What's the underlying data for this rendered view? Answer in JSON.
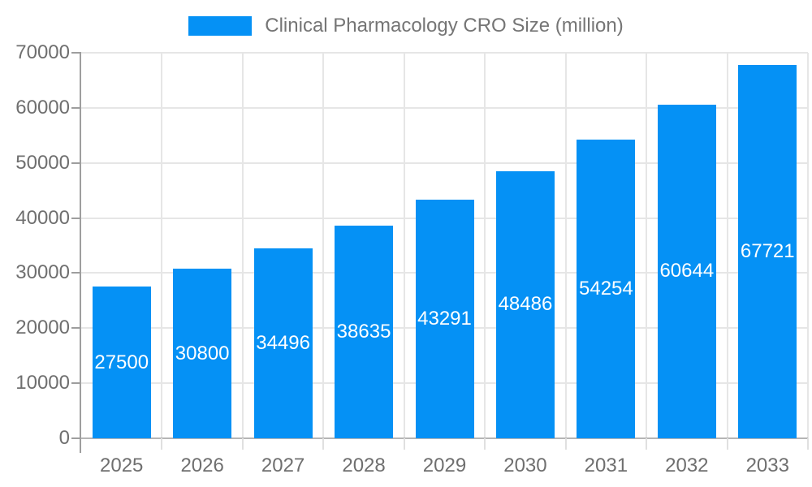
{
  "legend": {
    "label": "Clinical Pharmacology CRO Size (million)"
  },
  "chart_data": {
    "type": "bar",
    "title": "Clinical Pharmacology CRO Size (million)",
    "categories": [
      "2025",
      "2026",
      "2027",
      "2028",
      "2029",
      "2030",
      "2031",
      "2032",
      "2033"
    ],
    "values": [
      27500,
      30800,
      34496,
      38635,
      43291,
      48486,
      54254,
      60644,
      67721
    ],
    "series": [
      {
        "name": "Clinical Pharmacology CRO Size (million)",
        "values": [
          27500,
          30800,
          34496,
          38635,
          43291,
          48486,
          54254,
          60644,
          67721
        ]
      }
    ],
    "xlabel": "",
    "ylabel": "",
    "ylim": [
      0,
      70000
    ],
    "yticks": [
      0,
      10000,
      20000,
      30000,
      40000,
      50000,
      60000,
      70000
    ],
    "grid": true,
    "legend_position": "top",
    "data_labels": "inside-center-white",
    "colors": {
      "bar": "#0591f5",
      "data_label": "#ffffff",
      "axis_text": "#6f6f6f",
      "legend_text": "#757575",
      "gridline": "#e6e6e6",
      "axis_line": "#9e9e9e",
      "baseline": "#b5b5b5",
      "bottom_tick": "#e0e0e0",
      "background": "#ffffff"
    }
  }
}
